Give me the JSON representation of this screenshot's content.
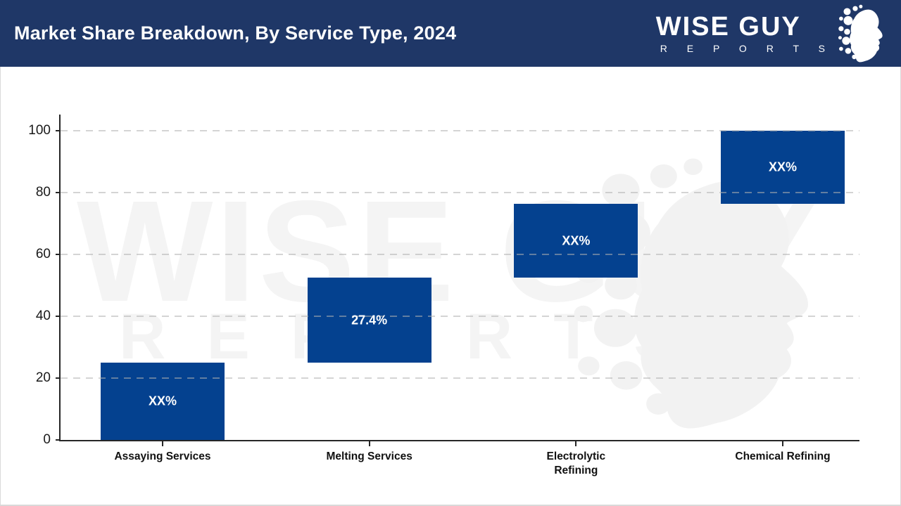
{
  "header": {
    "title": "Market Share Breakdown, By Service Type, 2024",
    "logo": {
      "line1": "WISE GUY",
      "line2": "R E P O R T S"
    }
  },
  "watermark": {
    "line1": "WISE GUY",
    "line2": "REPORTS"
  },
  "chart_data": {
    "type": "bar",
    "subtype": "floating-waterfall",
    "title": "Market Share Breakdown, By Service Type, 2024",
    "categories": [
      "Assaying Services",
      "Melting Services",
      "Electrolytic Refining",
      "Chemical Refining"
    ],
    "segments": [
      {
        "category": "Assaying Services",
        "start": 0,
        "end": 25,
        "label": "XX%"
      },
      {
        "category": "Melting Services",
        "start": 25,
        "end": 52.4,
        "label": "27.4%"
      },
      {
        "category": "Electrolytic Refining",
        "start": 52.4,
        "end": 76.4,
        "label": "XX%"
      },
      {
        "category": "Chemical Refining",
        "start": 76.4,
        "end": 100,
        "label": "XX%"
      }
    ],
    "xlabel": "",
    "ylabel": "",
    "ylim": [
      0,
      105
    ],
    "yticks": [
      0,
      20,
      40,
      60,
      80,
      100
    ],
    "grid": "horizontal-dashed-over-bars",
    "legend": "none",
    "bar_color": "#04418f",
    "bar_label_color": "#ffffff",
    "axis_color": "#262626",
    "header_color": "#1f3767",
    "watermark_color": "#f2f2f2"
  }
}
